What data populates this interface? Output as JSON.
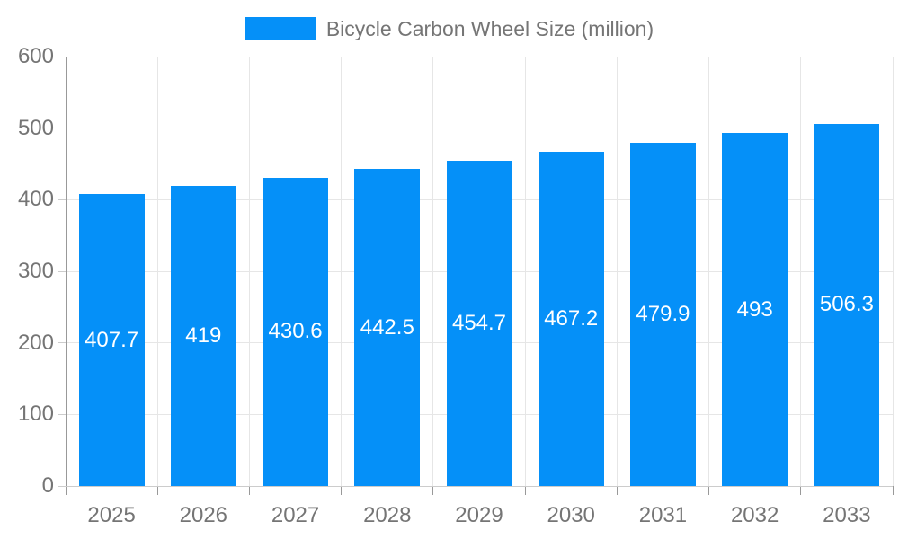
{
  "chart_data": {
    "type": "bar",
    "title": "Bicycle Carbon Wheel Size (million)",
    "legend": {
      "position": "top",
      "entries": [
        "Bicycle Carbon Wheel Size (million)"
      ]
    },
    "categories": [
      "2025",
      "2026",
      "2027",
      "2028",
      "2029",
      "2030",
      "2031",
      "2032",
      "2033"
    ],
    "values": [
      407.7,
      419,
      430.6,
      442.5,
      454.7,
      467.2,
      479.9,
      493,
      506.3
    ],
    "value_labels": [
      "407.7",
      "419",
      "430.6",
      "442.5",
      "454.7",
      "467.2",
      "479.9",
      "493",
      "506.3"
    ],
    "xlabel": "",
    "ylabel": "",
    "ylim": [
      0,
      600
    ],
    "y_ticks": [
      0,
      100,
      200,
      300,
      400,
      500,
      600
    ],
    "grid": true,
    "colors": {
      "bar": "#0590f8",
      "value_label": "#ffffff",
      "axis_text": "#757575",
      "legend_text": "#757575",
      "grid_line": "#e6e6e6",
      "y_axis_line": "#999999",
      "x_axis_line": "#cccccc"
    }
  }
}
